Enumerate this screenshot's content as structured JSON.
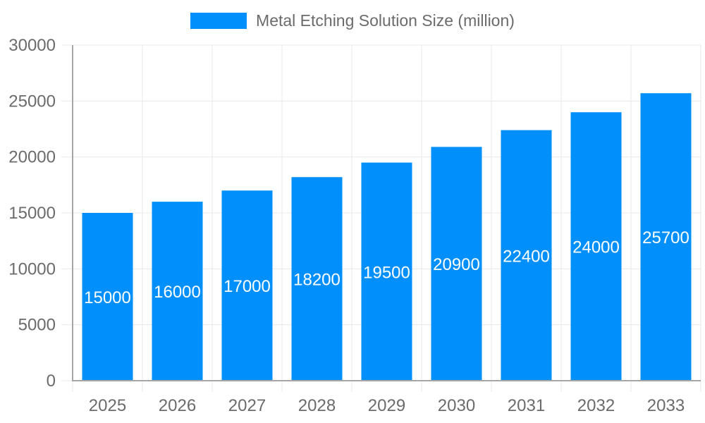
{
  "legend": {
    "label": "Metal Etching Solution Size (million)"
  },
  "colors": {
    "bar": "#008FFB",
    "bar_label": "#FFFFFF",
    "axis_line": "#A6A6A6",
    "grid_line": "#E8E8E8",
    "tick_label": "#6B6B6B",
    "legend_label": "#6B6B6B",
    "background": "#FFFFFF"
  },
  "chart_data": {
    "type": "bar",
    "title": "",
    "categories": [
      "2025",
      "2026",
      "2027",
      "2028",
      "2029",
      "2030",
      "2031",
      "2032",
      "2033"
    ],
    "series": [
      {
        "name": "Metal Etching Solution Size (million)",
        "values": [
          15000,
          16000,
          17000,
          18200,
          19500,
          20900,
          22400,
          24000,
          25700
        ]
      }
    ],
    "data_labels": [
      "15000",
      "16000",
      "17000",
      "18200",
      "19500",
      "20900",
      "22400",
      "24000",
      "25700"
    ],
    "xlabel": "",
    "ylabel": "",
    "ylim": [
      0,
      30000
    ],
    "yticks": [
      0,
      5000,
      10000,
      15000,
      20000,
      25000,
      30000
    ],
    "grid": true,
    "legend_position": "top",
    "bar_label_position": "inside-center"
  }
}
